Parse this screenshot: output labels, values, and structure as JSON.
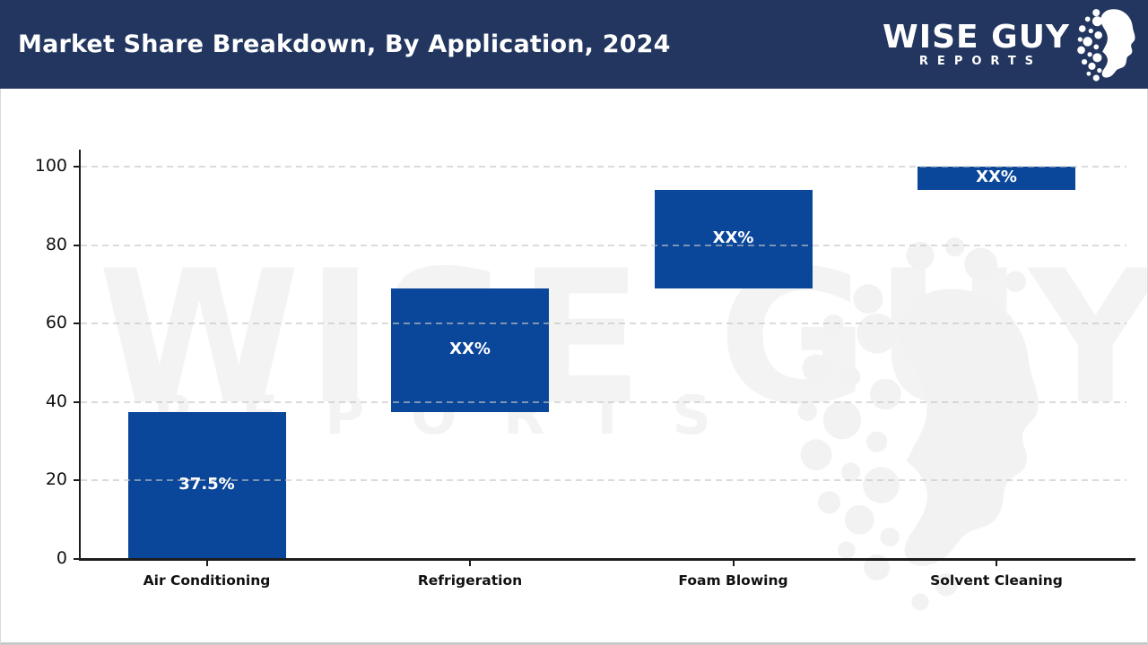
{
  "header": {
    "title": "Market Share Breakdown, By Application, 2024",
    "logo": {
      "line1": "WISE GUY",
      "line2": "REPORTS"
    }
  },
  "watermark": {
    "line1": "WISE GUY",
    "line2": "REPORTS"
  },
  "colors": {
    "header_bg": "#22365f",
    "bar": "#0a4699",
    "gridline": "#dcdcdc",
    "axis": "#1c1c1c",
    "watermark": "#f3f3f3",
    "label_text": "#ffffff"
  },
  "chart_data": {
    "type": "bar",
    "subtype": "waterfall-floating-bars",
    "title": "Market Share Breakdown, By Application, 2024",
    "categories": [
      "Air Conditioning",
      "Refrigeration",
      "Foam Blowing",
      "Solvent Cleaning"
    ],
    "segments": [
      {
        "category": "Air Conditioning",
        "label": "37.5%",
        "start": 0,
        "end": 37.5
      },
      {
        "category": "Refrigeration",
        "label": "XX%",
        "start": 37.5,
        "end": 69
      },
      {
        "category": "Foam Blowing",
        "label": "XX%",
        "start": 69,
        "end": 94
      },
      {
        "category": "Solvent Cleaning",
        "label": "XX%",
        "start": 94,
        "end": 100
      }
    ],
    "xlabel": "",
    "ylabel": "",
    "ylim": [
      0,
      100
    ],
    "yticks": [
      0,
      20,
      40,
      60,
      80,
      100
    ],
    "grid": "dashed-horizontal",
    "legend": null
  }
}
